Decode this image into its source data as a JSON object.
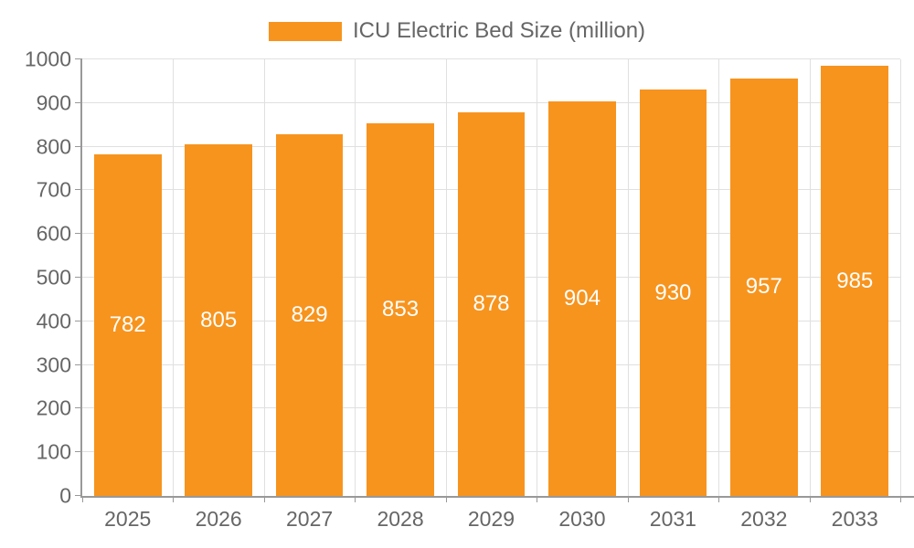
{
  "legend": {
    "label": "ICU Electric Bed Size (million)",
    "swatch_color": "#F7941E"
  },
  "chart_data": {
    "type": "bar",
    "title": "",
    "xlabel": "",
    "ylabel": "",
    "categories": [
      "2025",
      "2026",
      "2027",
      "2028",
      "2029",
      "2030",
      "2031",
      "2032",
      "2033"
    ],
    "series": [
      {
        "name": "ICU Electric Bed Size (million)",
        "values": [
          782,
          805,
          829,
          853,
          878,
          904,
          930,
          957,
          985
        ]
      }
    ],
    "ylim": [
      0,
      1000
    ],
    "ytick_interval": 100,
    "grid": true,
    "legend_position": "top",
    "bar_labels_visible": true,
    "colors": {
      "bar": "#F7941E",
      "bar_label": "#FFFFFF",
      "axis_text": "#666666",
      "grid_line": "#E0E0E0",
      "axis_line": "#999999"
    }
  }
}
